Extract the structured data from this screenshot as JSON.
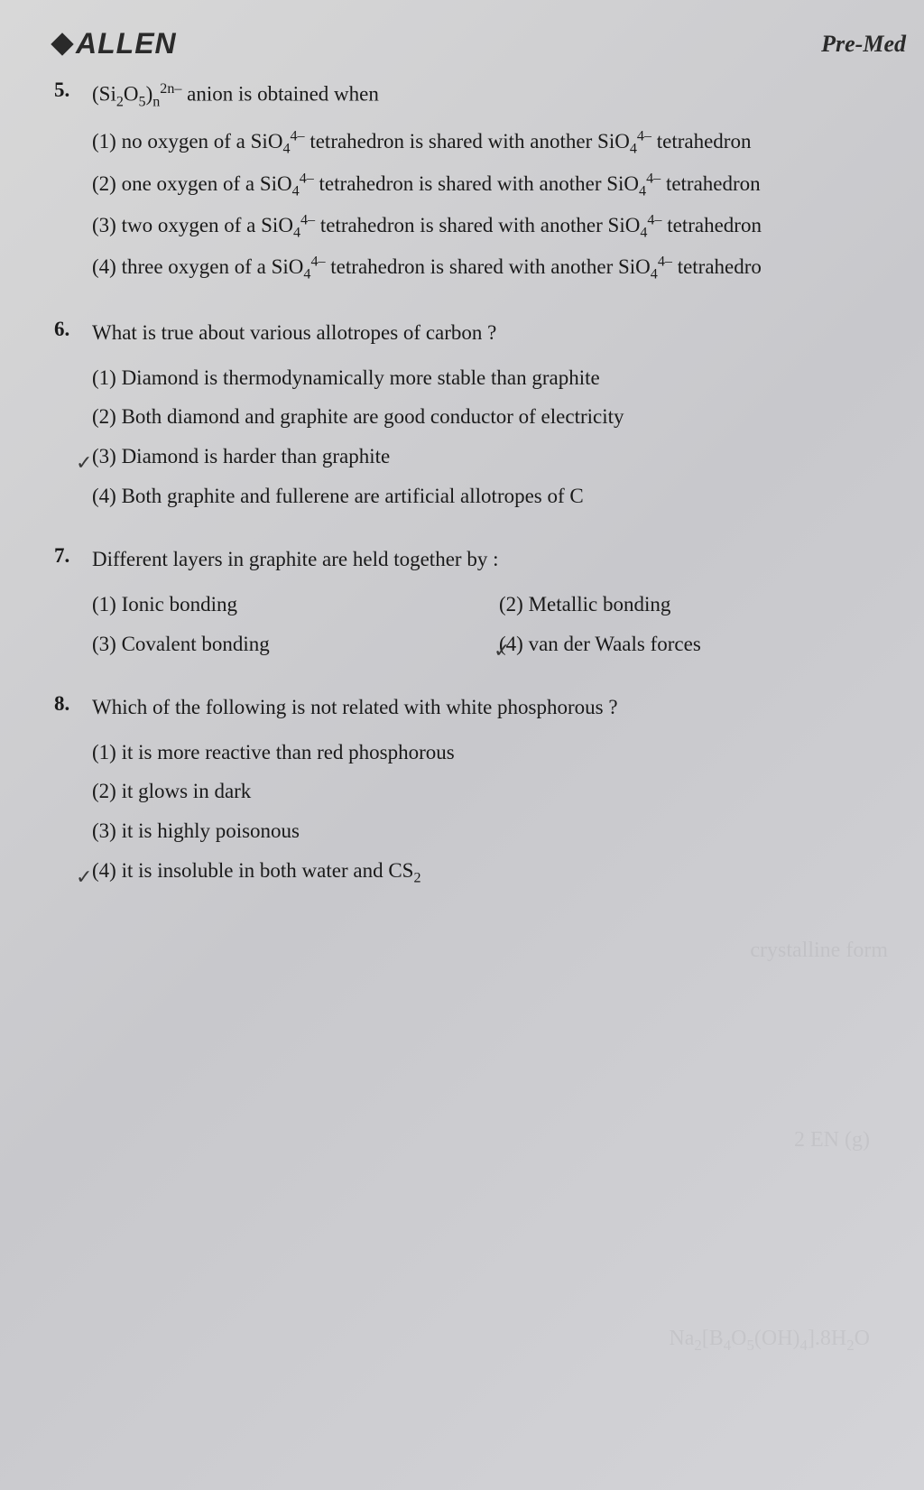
{
  "header": {
    "brand": "ALLEN",
    "label": "Pre-Med"
  },
  "questions": [
    {
      "number": "5.",
      "text_html": "(Si<sub>2</sub>O<sub>5</sub>)<sub>n</sub><sup>2n–</sup> anion is obtained when",
      "options": [
        {
          "marker": "(1)",
          "text_html": "no oxygen of a SiO<sub>4</sub><sup>4–</sup> tetrahedron is shared with another SiO<sub>4</sub><sup>4–</sup> tetrahedron"
        },
        {
          "marker": "(2)",
          "text_html": "one oxygen of a SiO<sub>4</sub><sup>4–</sup> tetrahedron is shared with another SiO<sub>4</sub><sup>4–</sup> tetrahedron"
        },
        {
          "marker": "(3)",
          "text_html": "two oxygen of a SiO<sub>4</sub><sup>4–</sup> tetrahedron is shared with another SiO<sub>4</sub><sup>4–</sup> tetrahedron"
        },
        {
          "marker": "(4)",
          "text_html": "three oxygen of a SiO<sub>4</sub><sup>4–</sup> tetrahedron is shared with another SiO<sub>4</sub><sup>4–</sup> tetrahedro"
        }
      ],
      "layout": "single"
    },
    {
      "number": "6.",
      "text_html": "What is true about various allotropes of carbon ?",
      "options": [
        {
          "marker": "(1)",
          "text_html": "Diamond is thermodynamically more stable than graphite"
        },
        {
          "marker": "(2)",
          "text_html": "Both diamond and graphite are good conductor of electricity"
        },
        {
          "marker": "(3)",
          "text_html": "Diamond is harder than graphite",
          "ticked": true
        },
        {
          "marker": "(4)",
          "text_html": "Both graphite and fullerene are artificial allotropes of C"
        }
      ],
      "layout": "single"
    },
    {
      "number": "7.",
      "text_html": "Different layers in graphite are held together by :",
      "options": [
        {
          "marker": "(1)",
          "text_html": "Ionic bonding"
        },
        {
          "marker": "(2)",
          "text_html": "Metallic bonding"
        },
        {
          "marker": "(3)",
          "text_html": "Covalent bonding"
        },
        {
          "marker": "(4)",
          "text_html": "van der Waals forces",
          "ticked": true
        }
      ],
      "layout": "two-col"
    },
    {
      "number": "8.",
      "text_html": "Which of the following is not related with white phosphorous ?",
      "options": [
        {
          "marker": "(1)",
          "text_html": "it is more reactive than red phosphorous"
        },
        {
          "marker": "(2)",
          "text_html": "it glows in dark"
        },
        {
          "marker": "(3)",
          "text_html": "it is highly poisonous"
        },
        {
          "marker": "(4)",
          "text_html": "it is insoluble in both water and CS<sub>2</sub>",
          "ticked": true
        }
      ],
      "layout": "single"
    }
  ],
  "colors": {
    "background": "#d4d4d8",
    "text": "#1a1a1a",
    "brand": "#2a2a2a"
  }
}
